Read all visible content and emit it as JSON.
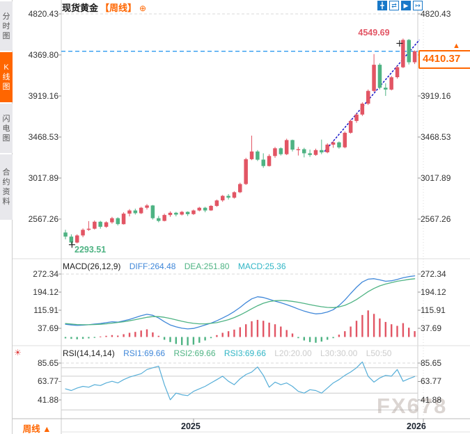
{
  "sidebar": {
    "items": [
      {
        "label": "分时图",
        "active": false
      },
      {
        "label": "K线图",
        "active": true
      },
      {
        "label": "闪电图",
        "active": false
      },
      {
        "label": "合约资料",
        "active": false
      }
    ]
  },
  "header": {
    "symbol": "现货黄金",
    "timeframe": "【周线】",
    "add_icon": "⊕",
    "toolbar_icons": [
      {
        "name": "pan-icon",
        "glyph": "╋"
      },
      {
        "name": "axis-scale-icon",
        "glyph": "⇄"
      },
      {
        "name": "auto-scale-icon",
        "glyph": "▶"
      },
      {
        "name": "reset-view-icon",
        "glyph": "↦"
      }
    ]
  },
  "macd_header": {
    "name": "MACD(26,12,9)",
    "diff": "DIFF:264.48",
    "dea": "DEA:251.80",
    "macd": "MACD:25.36"
  },
  "rsi_header": {
    "name": "RSI(14,14,14)",
    "rsi1": "RSI1:69.66",
    "rsi2": "RSI2:69.66",
    "rsi3": "RSI3:69.66",
    "l20": "L20:20.00",
    "l30": "L30:30.00",
    "l50": "L50:50"
  },
  "annotations": {
    "high": "4549.69",
    "low": "2293.51"
  },
  "price_box": {
    "value": "4410.37",
    "marker": "▲"
  },
  "bottom": {
    "tab": "周线",
    "tab_arrow": "▲",
    "x_label_1": "2025",
    "x_label_2": "2026",
    "watermark": "FX678"
  },
  "icons": {
    "indicator_settings": "☀"
  },
  "colors": {
    "up": "#e25564",
    "down": "#4eb383",
    "diff_line": "#3f87d9",
    "dea_line": "#4eb383",
    "rsi_line": "#56aed8",
    "accent": "#ff6600",
    "trend": "#1414c8",
    "current_price_line": "#2e9bf0",
    "grid": "#d8d8d8",
    "border": "#cccccc",
    "tick": "#999999"
  },
  "chart_data": {
    "type": "candlestick",
    "title": "现货黄金 【周线】",
    "period": "周线",
    "x_labels": [
      "2025",
      "2026"
    ],
    "price_axis": [
      4820.43,
      4369.8,
      3919.16,
      3468.53,
      3017.89,
      2567.26
    ],
    "macd_axis": [
      272.34,
      194.12,
      115.91,
      37.69
    ],
    "rsi_axis": [
      85.65,
      63.77,
      41.88
    ],
    "rsi_gridlines": [
      80,
      70,
      50,
      30
    ],
    "current_price": 4410.37,
    "high_annotation": 4549.69,
    "low_annotation": 2293.51,
    "macd_values": {
      "diff": 264.48,
      "dea": 251.8,
      "macd": 25.36
    },
    "rsi_values": {
      "rsi1": 69.66,
      "rsi2": 69.66,
      "rsi3": 69.66,
      "l20": 20.0,
      "l30": 30.0,
      "l50": 50
    },
    "trendline": {
      "i1": 44.5,
      "p1": 3310,
      "i2": 60.8,
      "p2": 4535
    },
    "candles_ohlc": [
      [
        2420,
        2450,
        2345,
        2375
      ],
      [
        2375,
        2400,
        2293.5,
        2310
      ],
      [
        2310,
        2400,
        2300,
        2388
      ],
      [
        2388,
        2465,
        2368,
        2450
      ],
      [
        2450,
        2545,
        2438,
        2462
      ],
      [
        2462,
        2552,
        2452,
        2538
      ],
      [
        2538,
        2548,
        2462,
        2482
      ],
      [
        2482,
        2542,
        2472,
        2532
      ],
      [
        2532,
        2592,
        2517,
        2577
      ],
      [
        2577,
        2587,
        2497,
        2512
      ],
      [
        2512,
        2642,
        2507,
        2627
      ],
      [
        2627,
        2677,
        2597,
        2662
      ],
      [
        2662,
        2682,
        2617,
        2632
      ],
      [
        2632,
        2702,
        2622,
        2692
      ],
      [
        2692,
        2732,
        2672,
        2717
      ],
      [
        2717,
        2722,
        2562,
        2577
      ],
      [
        2577,
        2602,
        2532,
        2547
      ],
      [
        2547,
        2627,
        2542,
        2612
      ],
      [
        2612,
        2652,
        2592,
        2637
      ],
      [
        2637,
        2647,
        2597,
        2617
      ],
      [
        2617,
        2657,
        2607,
        2647
      ],
      [
        2647,
        2652,
        2602,
        2622
      ],
      [
        2622,
        2672,
        2612,
        2662
      ],
      [
        2662,
        2702,
        2652,
        2692
      ],
      [
        2692,
        2702,
        2642,
        2662
      ],
      [
        2662,
        2722,
        2657,
        2712
      ],
      [
        2712,
        2782,
        2702,
        2772
      ],
      [
        2772,
        2832,
        2757,
        2822
      ],
      [
        2822,
        2842,
        2782,
        2802
      ],
      [
        2802,
        2872,
        2792,
        2862
      ],
      [
        2862,
        2967,
        2852,
        2952
      ],
      [
        2952,
        3240,
        2942,
        3225
      ],
      [
        3225,
        3484,
        3215,
        3310
      ],
      [
        3310,
        3325,
        3205,
        3220
      ],
      [
        3220,
        3290,
        3130,
        3150
      ],
      [
        3150,
        3280,
        3145,
        3260
      ],
      [
        3260,
        3360,
        3240,
        3345
      ],
      [
        3345,
        3355,
        3265,
        3280
      ],
      [
        3280,
        3450,
        3270,
        3435
      ],
      [
        3435,
        3440,
        3310,
        3330
      ],
      [
        3330,
        3360,
        3265,
        3335
      ],
      [
        3335,
        3350,
        3245,
        3290
      ],
      [
        3290,
        3330,
        3250,
        3272
      ],
      [
        3272,
        3340,
        3262,
        3325
      ],
      [
        3325,
        3440,
        3280,
        3300
      ],
      [
        3300,
        3400,
        3290,
        3385
      ],
      [
        3385,
        3425,
        3350,
        3410
      ],
      [
        3410,
        3420,
        3340,
        3355
      ],
      [
        3355,
        3530,
        3345,
        3515
      ],
      [
        3515,
        3660,
        3505,
        3645
      ],
      [
        3645,
        3730,
        3625,
        3715
      ],
      [
        3715,
        3850,
        3700,
        3835
      ],
      [
        3835,
        3990,
        3820,
        3975
      ],
      [
        3975,
        4380,
        3965,
        4262
      ],
      [
        4262,
        4280,
        3990,
        4010
      ],
      [
        4010,
        4060,
        3920,
        3990
      ],
      [
        3990,
        4140,
        3980,
        4125
      ],
      [
        4125,
        4250,
        4110,
        4235
      ],
      [
        4235,
        4549.7,
        4225,
        4535
      ],
      [
        4535,
        4545,
        4265,
        4290
      ],
      [
        4290,
        4420,
        4270,
        4410.4
      ]
    ],
    "macd": {
      "diff": [
        55,
        52,
        50,
        51,
        53,
        56,
        58,
        62,
        66,
        64,
        70,
        76,
        84,
        92,
        98,
        94,
        82,
        66,
        52,
        44,
        38,
        35,
        37,
        44,
        52,
        60,
        70,
        82,
        95,
        110,
        128,
        148,
        165,
        174,
        171,
        163,
        155,
        148,
        140,
        131,
        121,
        112,
        105,
        100,
        102,
        108,
        118,
        136,
        160,
        188,
        215,
        238,
        250,
        252,
        247,
        241,
        243,
        249,
        256,
        261,
        264.5
      ],
      "dea": [
        58,
        56,
        54,
        53,
        53,
        54,
        55,
        57,
        60,
        63,
        66,
        70,
        75,
        80,
        85,
        88,
        88,
        85,
        80,
        74,
        68,
        63,
        59,
        57,
        57,
        59,
        62,
        68,
        75,
        84,
        95,
        108,
        122,
        135,
        146,
        153,
        157,
        158,
        157,
        154,
        150,
        145,
        140,
        135,
        131,
        128,
        127,
        130,
        137,
        148,
        162,
        179,
        196,
        210,
        221,
        229,
        235,
        241,
        245,
        249,
        251.8
      ],
      "hist": [
        -6,
        -8,
        -10,
        -8,
        -6,
        -4,
        2,
        5,
        8,
        6,
        12,
        18,
        22,
        28,
        33,
        20,
        5,
        -12,
        -22,
        -30,
        -35,
        -38,
        -33,
        -25,
        -15,
        -5,
        8,
        18,
        25,
        32,
        42,
        55,
        68,
        74,
        70,
        62,
        55,
        45,
        30,
        15,
        -5,
        -15,
        -22,
        -25,
        -20,
        -12,
        -5,
        10,
        25,
        45,
        70,
        95,
        115,
        100,
        80,
        65,
        55,
        48,
        60,
        40,
        25.4
      ]
    },
    "rsi": [
      55,
      53,
      56,
      58,
      57,
      60,
      59,
      62,
      64,
      62,
      66,
      69,
      71,
      73,
      78,
      80,
      82,
      60,
      42,
      50,
      48,
      47,
      52,
      55,
      58,
      62,
      66,
      70,
      64,
      60,
      67,
      72,
      75,
      81,
      71,
      57,
      63,
      60,
      62,
      58,
      52,
      50,
      54,
      53,
      50,
      56,
      62,
      66,
      71,
      75,
      80,
      87,
      70,
      63,
      68,
      71,
      70,
      78,
      64,
      67,
      69.7
    ]
  }
}
